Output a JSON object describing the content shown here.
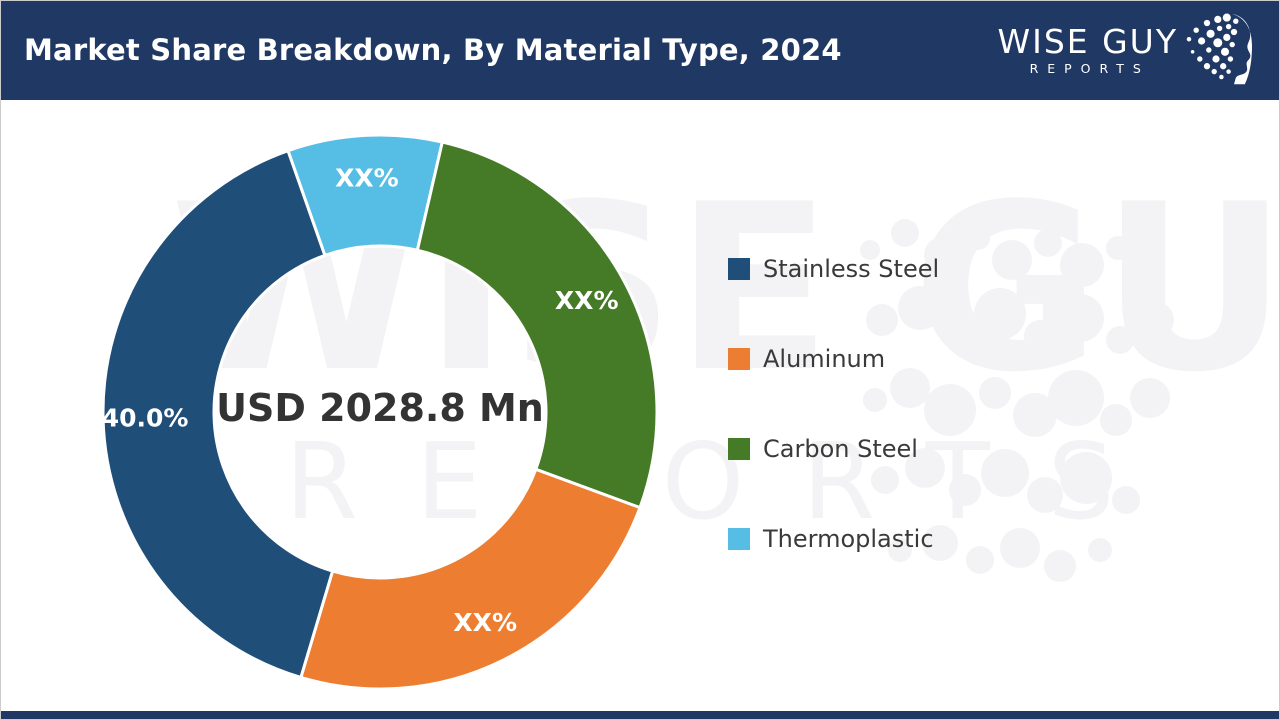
{
  "header": {
    "title": "Market Share Breakdown, By Material Type, 2024",
    "logo": {
      "name": "WISE GUY",
      "sub": "REPORTS"
    }
  },
  "watermark": {
    "line1": "WISE GUY",
    "line2": "REPORTS"
  },
  "chart_data": {
    "type": "donut",
    "title": "Market Share Breakdown, By Material Type, 2024",
    "center_label": "USD 2028.8 Mn",
    "unit": "percent of market share",
    "start_angle_deg": -19.4,
    "slices": [
      {
        "label": "Thermoplastic",
        "value_pct": 9,
        "display": "XX%",
        "color": "#56BEE4"
      },
      {
        "label": "Carbon Steel",
        "value_pct": 27,
        "display": "XX%",
        "color": "#457A26"
      },
      {
        "label": "Aluminum",
        "value_pct": 24,
        "display": "XX%",
        "color": "#ED7D31"
      },
      {
        "label": "Stainless Steel",
        "value_pct": 40,
        "display": "40.0%",
        "color": "#1F4E79"
      }
    ],
    "legend_position": "right"
  },
  "legend": {
    "items": [
      {
        "label": "Stainless Steel",
        "color": "#1F4E79"
      },
      {
        "label": "Aluminum",
        "color": "#ED7D31"
      },
      {
        "label": "Carbon Steel",
        "color": "#457A26"
      },
      {
        "label": "Thermoplastic",
        "color": "#56BEE4"
      }
    ]
  },
  "colors": {
    "header_bar": "#203864",
    "footer_bar": "#203864",
    "center_text": "#333333",
    "watermark": "#f3f3f5",
    "slice_label_text": "#ffffff"
  }
}
